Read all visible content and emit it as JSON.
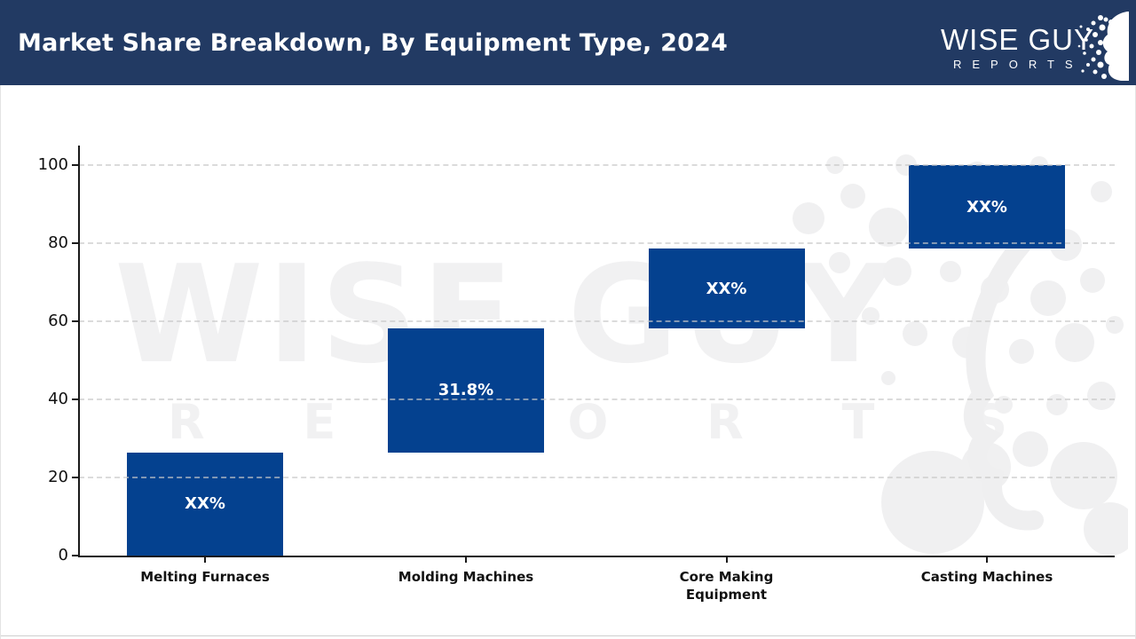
{
  "header": {
    "title": "Market Share Breakdown, By Equipment Type, 2024",
    "bg_color": "#223A63",
    "logo": {
      "line1": "WISE GUY",
      "line2": "REPORTS",
      "face_icon": "face-profile-dots"
    }
  },
  "watermark": {
    "line1": "WISE GUY",
    "line2": "R E P O R T S"
  },
  "chart_data": {
    "type": "bar",
    "subtype": "floating-waterfall",
    "title": "Market Share Breakdown, By Equipment Type, 2024",
    "categories": [
      "Melting Furnaces",
      "Molding Machines",
      "Core Making Equipment",
      "Casting Machines"
    ],
    "segments": [
      {
        "category": "Melting Furnaces",
        "start": 0,
        "end": 26.4,
        "label": "XX%"
      },
      {
        "category": "Molding Machines",
        "start": 26.4,
        "end": 58.2,
        "label": "31.8%"
      },
      {
        "category": "Core Making Equipment",
        "start": 58.2,
        "end": 78.6,
        "label": "XX%"
      },
      {
        "category": "Casting Machines",
        "start": 78.6,
        "end": 100,
        "label": "XX%"
      }
    ],
    "y_ticks": [
      0,
      20,
      40,
      60,
      80,
      100
    ],
    "ylim": [
      0,
      100
    ],
    "xlabel": "",
    "ylabel": "",
    "grid": "horizontal-dashed",
    "legend": "none",
    "bar_color": "#04418F",
    "bar_label_color": "#ffffff",
    "axis_color": "#1a1a1a",
    "gridline_color": "#d9d9d9"
  }
}
